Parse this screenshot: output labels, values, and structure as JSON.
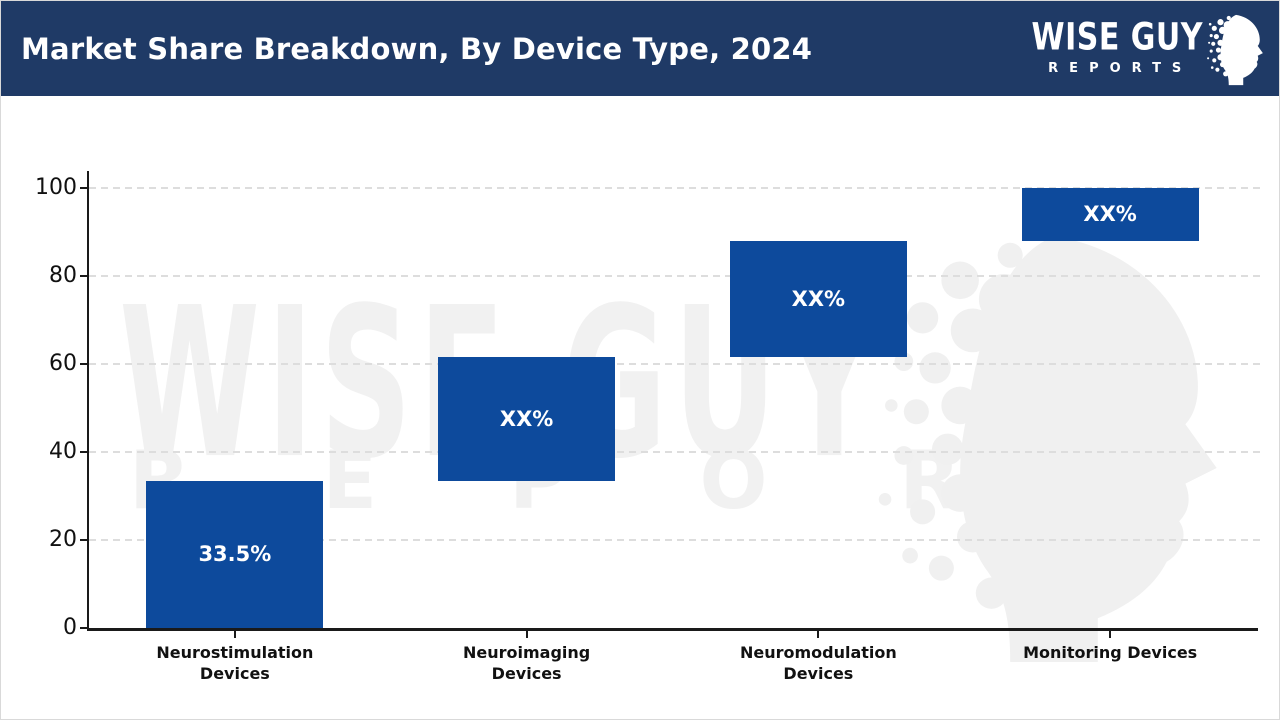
{
  "header": {
    "title": "Market Share Breakdown, By Device Type, 2024",
    "logo": {
      "line1": "WISE GUY",
      "line2": "REPORTS"
    }
  },
  "watermark": {
    "line1": "WISE GUY",
    "line2": "R E P O R T S"
  },
  "colors": {
    "header_bg": "#1f3a66",
    "bar": "#0d4a9c",
    "grid": "#dddddd",
    "axis": "#1a1a1a",
    "text": "#111111",
    "watermark": "#f1f1f1",
    "page_border": "#d9d9d9"
  },
  "chart_data": {
    "type": "bar",
    "subtype": "waterfall",
    "title": "Market Share Breakdown, By Device Type, 2024",
    "categories": [
      "Neurostimulation Devices",
      "Neuroimaging Devices",
      "Neuromodulation Devices",
      "Monitoring Devices"
    ],
    "category_lines": [
      [
        "Neurostimulation",
        "Devices"
      ],
      [
        "Neuroimaging",
        "Devices"
      ],
      [
        "Neuromodulation",
        "Devices"
      ],
      [
        "Monitoring Devices"
      ]
    ],
    "segments": [
      {
        "category": "Neurostimulation Devices",
        "start": 0,
        "end": 33.5,
        "label": "33.5%"
      },
      {
        "category": "Neuroimaging Devices",
        "start": 33.5,
        "end": 61.5,
        "label": "XX%"
      },
      {
        "category": "Neuromodulation Devices",
        "start": 61.5,
        "end": 88,
        "label": "XX%"
      },
      {
        "category": "Monitoring Devices",
        "start": 88,
        "end": 100,
        "label": "XX%"
      }
    ],
    "yticks": [
      0,
      20,
      40,
      60,
      80,
      100
    ],
    "ylim": [
      0,
      105
    ],
    "xlabel": "",
    "ylabel": "",
    "grid": "horizontal-dashed",
    "legend": "none"
  }
}
